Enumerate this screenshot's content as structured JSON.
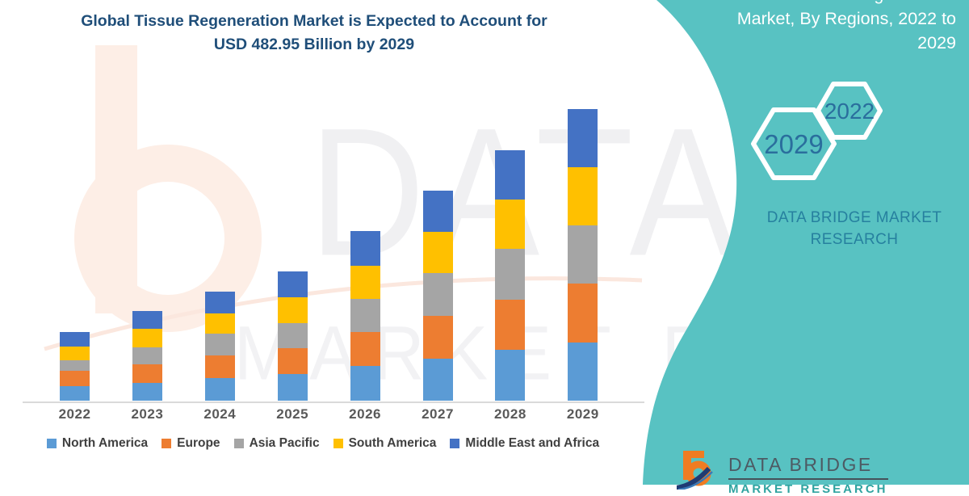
{
  "title": {
    "line1": "Global Tissue Regeneration Market is Expected to Account for",
    "line2": "USD 482.95 Billion by 2029"
  },
  "side_panel": {
    "bg_color": "#58c2c2",
    "heading_top_clipped": "Global Tissue Regeneration",
    "heading_line1": "Market, By Regions, 2022 to",
    "heading_line2": "2029",
    "hex_small_label": "2022",
    "hex_large_label": "2029",
    "brand_line1": "DATA BRIDGE MARKET",
    "brand_line2": "RESEARCH"
  },
  "watermarks": {
    "big_text": "DATA BRIDGE",
    "mid_text": "MARKET RESEARCH"
  },
  "footer_logo": {
    "brand": "DATA BRIDGE",
    "tagline": "MARKET RESEARCH"
  },
  "chart_data": {
    "type": "bar",
    "stacked": true,
    "title": "Global Tissue Regeneration Market is Expected to Account for USD 482.95 Billion by 2029",
    "unit": "USD Billion",
    "value_axis_hidden": true,
    "legend_position": "bottom",
    "categories": [
      "2022",
      "2023",
      "2024",
      "2025",
      "2026",
      "2027",
      "2028",
      "2029"
    ],
    "series": [
      {
        "name": "North America",
        "color": "#5B9BD5",
        "values": [
          24,
          29,
          37,
          44,
          57,
          70,
          84,
          97
        ]
      },
      {
        "name": "Europe",
        "color": "#ED7D31",
        "values": [
          25,
          31,
          38,
          43,
          57,
          70,
          83,
          97
        ]
      },
      {
        "name": "Asia Pacific",
        "color": "#A5A5A5",
        "values": [
          18,
          28,
          36,
          41,
          55,
          71,
          84,
          97
        ]
      },
      {
        "name": "South America",
        "color": "#FFC000",
        "values": [
          23,
          31,
          34,
          43,
          55,
          69,
          82,
          96
        ]
      },
      {
        "name": "Middle East and Africa",
        "color": "#4472C4",
        "values": [
          24,
          29,
          36,
          43,
          57,
          68,
          82,
          95.95
        ]
      }
    ],
    "totals_estimated": [
      114,
      148,
      181,
      214,
      281,
      348,
      415,
      482.95
    ],
    "ylim": [
      0,
      500
    ]
  }
}
